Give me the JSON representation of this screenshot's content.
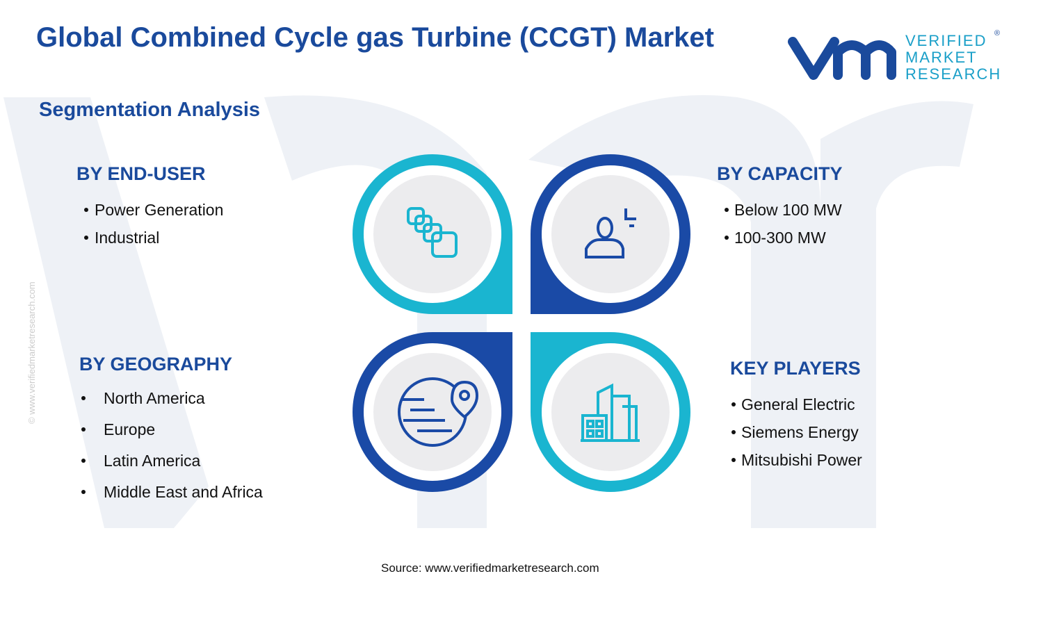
{
  "header": {
    "title": "Global Combined Cycle gas Turbine (CCGT) Market",
    "logo": {
      "words": [
        "VERIFIED",
        "MARKET",
        "RESEARCH"
      ],
      "registered": "®"
    }
  },
  "subtitle": "Segmentation Analysis",
  "segments": [
    {
      "heading": "BY END-USER",
      "items": [
        "Power Generation",
        "Industrial"
      ]
    },
    {
      "heading": "BY CAPACITY",
      "items": [
        "Below 100 MW",
        "100-300 MW"
      ]
    },
    {
      "heading": "BY GEOGRAPHY",
      "items": [
        "North America",
        "Europe",
        "Latin America",
        "Middle East and Africa"
      ]
    },
    {
      "heading": "KEY PLAYERS",
      "items": [
        "General Electric",
        "Siemens Energy",
        "Mitsubishi Power"
      ]
    }
  ],
  "watermark": "© www.verifiedmarketresearch.com",
  "source": "Source: www.verifiedmarketresearch.com"
}
